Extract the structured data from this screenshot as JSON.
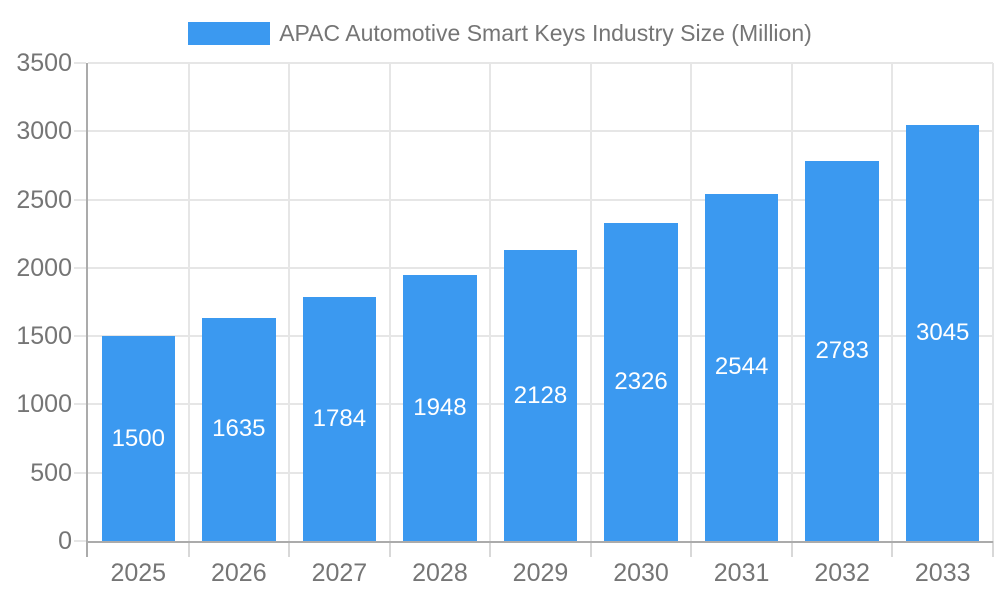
{
  "legend": {
    "label": "APAC Automotive Smart Keys Industry Size (Million)"
  },
  "chart_data": {
    "type": "bar",
    "title": "APAC Automotive Smart Keys Industry Size (Million)",
    "categories": [
      "2025",
      "2026",
      "2027",
      "2028",
      "2029",
      "2030",
      "2031",
      "2032",
      "2033"
    ],
    "values": [
      1500,
      1635,
      1784,
      1948,
      2128,
      2326,
      2544,
      2783,
      3045
    ],
    "yticks": [
      0,
      500,
      1000,
      1500,
      2000,
      2500,
      3000,
      3500
    ],
    "ylim": [
      0,
      3500
    ],
    "xlabel": "",
    "ylabel": "",
    "legend_position": "top",
    "grid": true,
    "value_label_position": "inside-center",
    "bar_color": "#3B99F0",
    "value_label_color": "#FFFFFF",
    "axis_text_color": "#757575",
    "grid_color": "#E6E6E6",
    "tick_color": "#D8D8D8",
    "axis_line_color": "#ABABAB",
    "background_color": "#FFFFFF"
  }
}
